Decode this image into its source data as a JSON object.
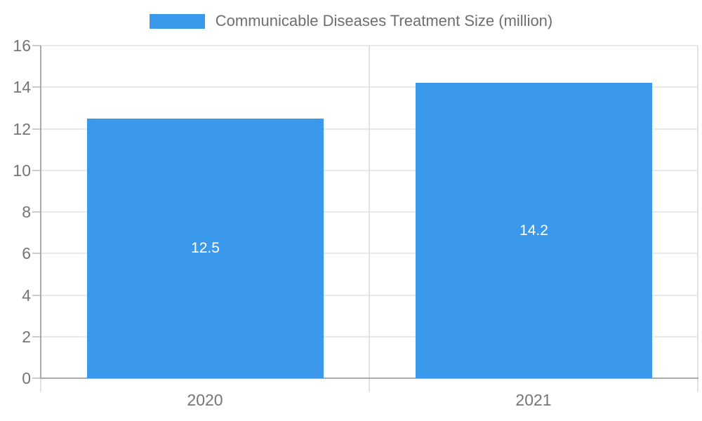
{
  "legend": {
    "label": "Communicable Diseases Treatment Size (million)"
  },
  "chart_data": {
    "type": "bar",
    "title": "Communicable Diseases Treatment Size (million)",
    "categories": [
      "2020",
      "2021"
    ],
    "values": [
      12.5,
      14.2
    ],
    "bar_labels": [
      "12.5",
      "14.2"
    ],
    "series": [
      {
        "name": "Communicable Diseases Treatment Size (million)",
        "values": [
          12.5,
          14.2
        ]
      }
    ],
    "xlabel": "",
    "ylabel": "",
    "ylim": [
      0,
      16
    ],
    "yticks": [
      0,
      2,
      4,
      6,
      8,
      10,
      12,
      14,
      16
    ],
    "grid": true,
    "legend_position": "top",
    "bar_width_fraction": 0.72,
    "colors": {
      "bar": "#3B99EC",
      "axis_line": "#ababab",
      "grid_line": "#e9e9e9",
      "grid_line_vertical": "#e2e2e2",
      "tick_mark": "#cbcbcb",
      "label_text": "#757575",
      "legend_text": "#6e6e6e",
      "bar_label_text": "#ffffff",
      "background": "#ffffff"
    }
  }
}
